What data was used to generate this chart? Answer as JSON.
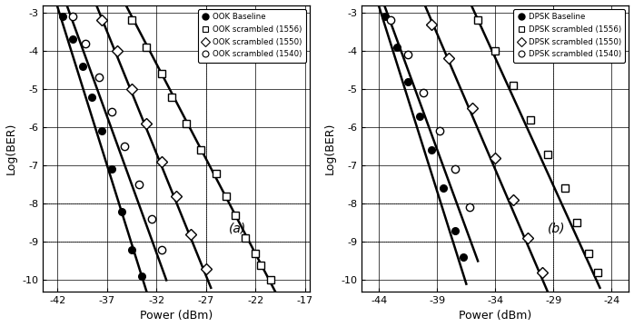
{
  "panel_a": {
    "title": "(a)",
    "xlabel": "Power (dBm)",
    "ylabel": "Log(BER)",
    "xlim": [
      -43.5,
      -16.5
    ],
    "ylim": [
      -10.3,
      -2.8
    ],
    "xticks": [
      -42,
      -37,
      -32,
      -27,
      -22,
      -17
    ],
    "yticks": [
      -10,
      -9,
      -8,
      -7,
      -6,
      -5,
      -4,
      -3
    ],
    "dotted_vline": -27.0,
    "baseline": {
      "label": "OOK Baseline",
      "pts_x": [
        -41.5,
        -40.5,
        -39.5,
        -38.5,
        -37.5,
        -36.5,
        -35.5,
        -34.5,
        -33.5
      ],
      "pts_y": [
        -3.1,
        -3.7,
        -4.4,
        -5.2,
        -6.1,
        -7.1,
        -8.2,
        -9.2,
        -9.9
      ],
      "line_x": [
        -42.0,
        -33.0
      ],
      "line_y": [
        -2.85,
        -10.3
      ]
    },
    "scrambled_1540": {
      "label": "OOK scrambled (1540)",
      "pts_x": [
        -40.5,
        -39.2,
        -37.8,
        -36.5,
        -35.2,
        -33.8,
        -32.5,
        -31.5
      ],
      "pts_y": [
        -3.1,
        -3.8,
        -4.7,
        -5.6,
        -6.5,
        -7.5,
        -8.4,
        -9.2
      ],
      "line_x": [
        -41.0,
        -31.0
      ],
      "line_y": [
        -2.85,
        -10.0
      ]
    },
    "scrambled_1550": {
      "label": "OOK scrambled (1550)",
      "pts_x": [
        -37.5,
        -36.0,
        -34.5,
        -33.0,
        -31.5,
        -30.0,
        -28.5,
        -27.0
      ],
      "pts_y": [
        -3.2,
        -4.0,
        -5.0,
        -5.9,
        -6.9,
        -7.8,
        -8.8,
        -9.7
      ],
      "line_x": [
        -38.0,
        -26.5
      ],
      "line_y": [
        -2.85,
        -10.2
      ]
    },
    "scrambled_1556": {
      "label": "OOK scrambled (1556)",
      "pts_x": [
        -34.5,
        -33.0,
        -31.5,
        -30.5,
        -29.0,
        -27.5,
        -26.0,
        -25.0,
        -24.0,
        -23.0,
        -22.0,
        -21.5,
        -20.5
      ],
      "pts_y": [
        -3.2,
        -3.9,
        -4.6,
        -5.2,
        -5.9,
        -6.6,
        -7.2,
        -7.8,
        -8.3,
        -8.9,
        -9.3,
        -9.6,
        -10.0
      ],
      "line_x": [
        -35.0,
        -20.0
      ],
      "line_y": [
        -2.85,
        -10.3
      ]
    }
  },
  "panel_b": {
    "title": "(b)",
    "xlabel": "Power (dBm)",
    "ylabel": "Log(BER)",
    "xlim": [
      -45.5,
      -22.5
    ],
    "ylim": [
      -10.3,
      -2.8
    ],
    "xticks": [
      -44,
      -39,
      -34,
      -29,
      -24
    ],
    "yticks": [
      -10,
      -9,
      -8,
      -7,
      -6,
      -5,
      -4,
      -3
    ],
    "dotted_vline": -29.0,
    "baseline": {
      "label": "DPSK Baseline",
      "pts_x": [
        -43.5,
        -42.5,
        -41.5,
        -40.5,
        -39.5,
        -38.5,
        -37.5,
        -36.8
      ],
      "pts_y": [
        -3.1,
        -3.9,
        -4.8,
        -5.7,
        -6.6,
        -7.6,
        -8.7,
        -9.4
      ],
      "line_x": [
        -44.0,
        -36.5
      ],
      "line_y": [
        -2.85,
        -10.1
      ]
    },
    "scrambled_1540": {
      "label": "DPSK scrambled (1540)",
      "pts_x": [
        -43.0,
        -41.5,
        -40.2,
        -38.8,
        -37.5,
        -36.2
      ],
      "pts_y": [
        -3.2,
        -4.1,
        -5.1,
        -6.1,
        -7.1,
        -8.1
      ],
      "line_x": [
        -43.5,
        -35.5
      ],
      "line_y": [
        -2.85,
        -9.5
      ]
    },
    "scrambled_1550": {
      "label": "DPSK scrambled (1550)",
      "pts_x": [
        -39.5,
        -38.0,
        -36.0,
        -34.0,
        -32.5,
        -31.2,
        -30.0
      ],
      "pts_y": [
        -3.3,
        -4.2,
        -5.5,
        -6.8,
        -7.9,
        -8.9,
        -9.8
      ],
      "line_x": [
        -40.0,
        -29.5
      ],
      "line_y": [
        -2.85,
        -10.3
      ]
    },
    "scrambled_1556": {
      "label": "DPSK scrambled (1556)",
      "pts_x": [
        -35.5,
        -34.0,
        -32.5,
        -31.0,
        -29.5,
        -28.0,
        -27.0,
        -26.0,
        -25.2
      ],
      "pts_y": [
        -3.2,
        -4.0,
        -4.9,
        -5.8,
        -6.7,
        -7.6,
        -8.5,
        -9.3,
        -9.8
      ],
      "line_x": [
        -36.0,
        -25.0
      ],
      "line_y": [
        -2.85,
        -10.2
      ]
    }
  }
}
